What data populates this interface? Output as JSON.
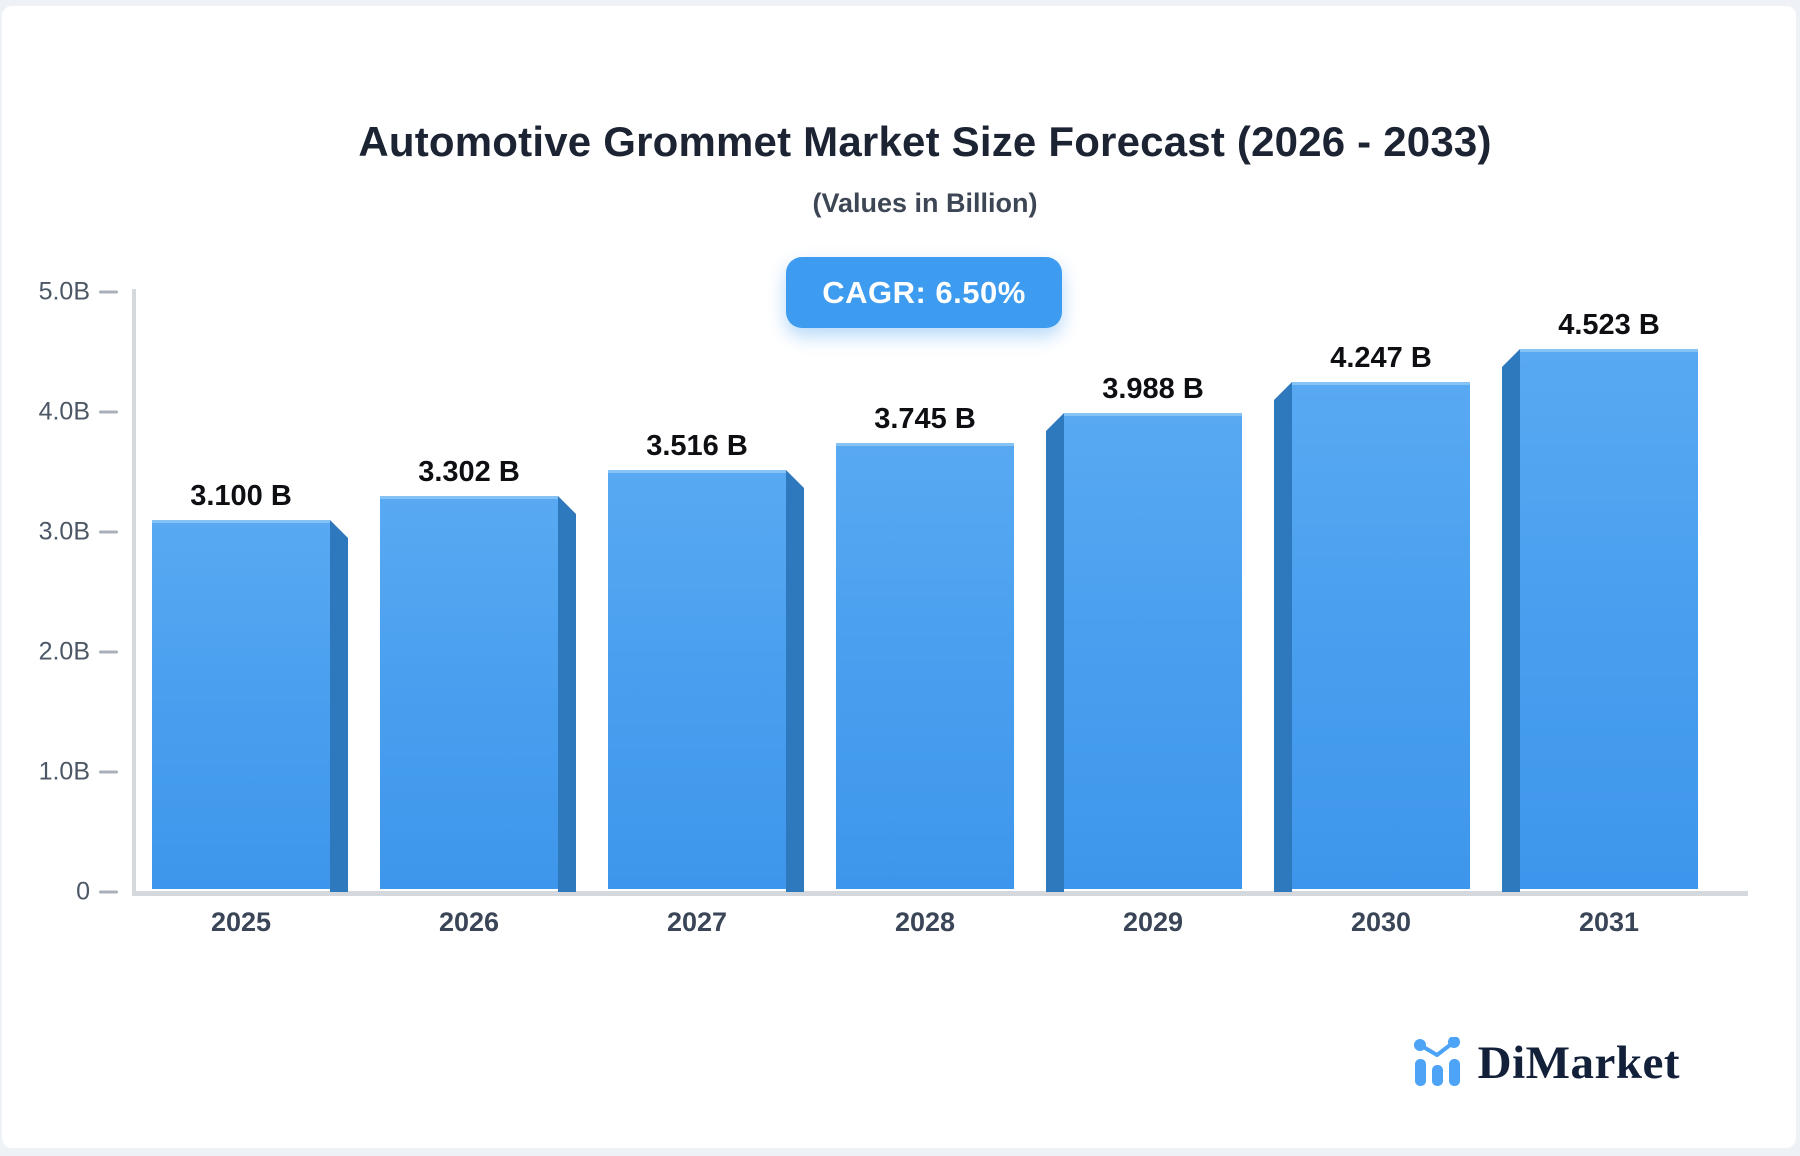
{
  "header": {
    "title": "Automotive Grommet Market Size Forecast (2026 - 2033)",
    "subtitle": "(Values in Billion)",
    "cagr_badge": "CAGR: 6.50%"
  },
  "chart_data": {
    "type": "bar",
    "title": "Automotive Grommet Market Size Forecast (2026 - 2033)",
    "subtitle": "(Values in Billion)",
    "annotation": "CAGR: 6.50%",
    "categories": [
      "2025",
      "2026",
      "2027",
      "2028",
      "2029",
      "2030",
      "2031"
    ],
    "values": [
      3.1,
      3.302,
      3.516,
      3.745,
      3.988,
      4.247,
      4.523
    ],
    "value_labels": [
      "3.100 B",
      "3.302 B",
      "3.516 B",
      "3.745 B",
      "3.988 B",
      "4.247 B",
      "4.523 B"
    ],
    "xlabel": "",
    "ylabel": "",
    "ylim": [
      0,
      5
    ],
    "y_ticks": [
      {
        "value": 5,
        "label": "5.0B"
      },
      {
        "value": 4,
        "label": "4.0B"
      },
      {
        "value": 3,
        "label": "3.0B"
      },
      {
        "value": 2,
        "label": "2.0B"
      },
      {
        "value": 1,
        "label": "1.0B"
      },
      {
        "value": 0,
        "label": "0"
      }
    ],
    "grid": false,
    "legend": false,
    "bar_style": "pseudo-3d",
    "colors": {
      "bar_face_top": "#58a9f2",
      "bar_face_bottom": "#3e96ec",
      "bar_top_edge": "#85c3f7",
      "bar_side": "#2e78be",
      "axis_line": "#d5d8dd",
      "tick_dash": "#a9b0ba",
      "tick_label": "#4c5767",
      "year_label": "#3a4658",
      "value_label": "#0d0f13",
      "badge_background": "#3d9bf0",
      "badge_text": "#ffffff"
    }
  },
  "branding": {
    "name": "DiMarket",
    "logo_icon": "mini-bar-chart-icon",
    "logo_color": "#4da3f5",
    "text_color": "#13203a"
  }
}
